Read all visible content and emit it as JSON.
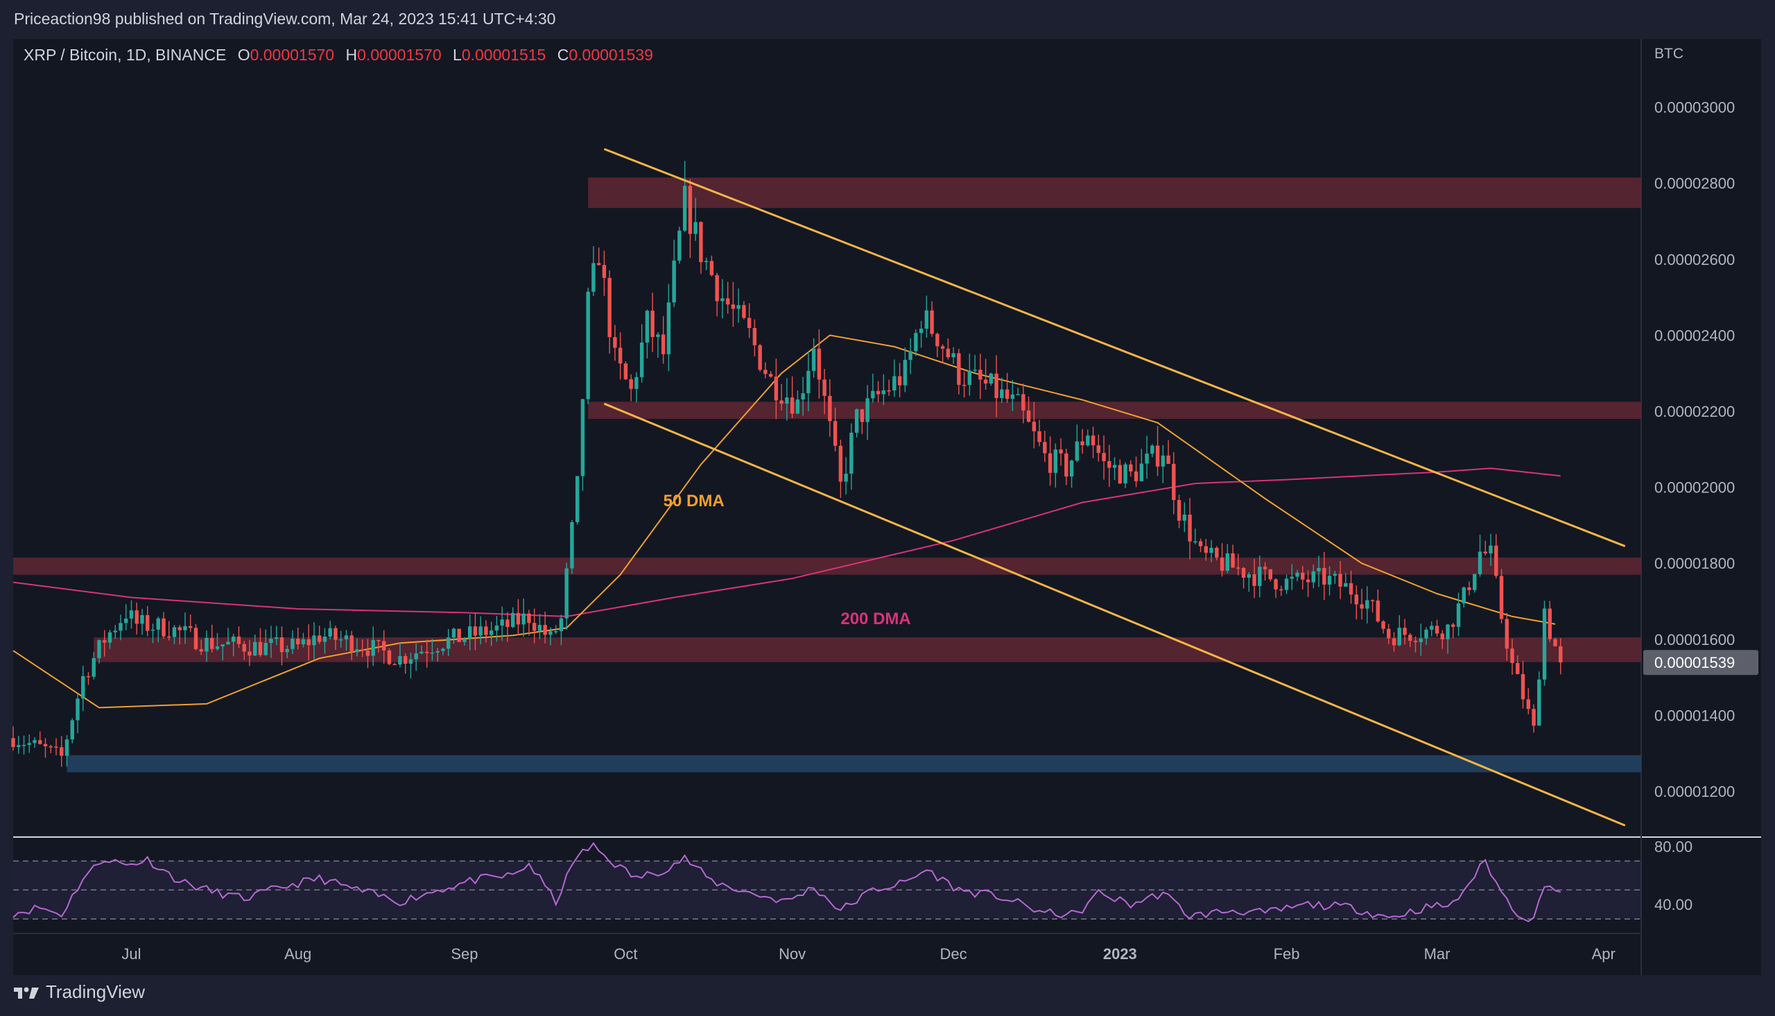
{
  "header": {
    "publisher": "Priceaction98 published on TradingView.com, Mar 24, 2023 15:41 UTC+4:30"
  },
  "legend": {
    "symbol": "XRP / Bitcoin, 1D, BINANCE",
    "open_label": "O",
    "open": "0.00001570",
    "high_label": "H",
    "high": "0.00001570",
    "low_label": "L",
    "low": "0.00001515",
    "close_label": "C",
    "close": "0.00001539"
  },
  "footer": {
    "logo_text": "TradingView"
  },
  "colors": {
    "background": "#131722",
    "page": "#1c2030",
    "up": "#26a69a",
    "down": "#ef5350",
    "channel": "#f5b547",
    "dma50": "#f0a030",
    "dma200": "#d9327a",
    "zone": "#6b2a35",
    "support": "#244466",
    "rsi": "#b36ad0",
    "grid_text": "#b2b5be"
  },
  "chart_data": [
    {
      "type": "candlestick",
      "title": "XRP / Bitcoin, 1D, BINANCE",
      "y_unit": "BTC",
      "ylim": [
        1.085e-05,
        3.18e-05
      ],
      "x_range": [
        "2022-06-09",
        "2023-04-08"
      ],
      "y_ticks": [
        "0.00001200",
        "0.00001400",
        "0.00001600",
        "0.00001800",
        "0.00002000",
        "0.00002200",
        "0.00002400",
        "0.00002600",
        "0.00002800",
        "0.00003000"
      ],
      "x_ticks": [
        {
          "date": "2022-07-01",
          "label": "Jul",
          "bold": false
        },
        {
          "date": "2022-08-01",
          "label": "Aug",
          "bold": false
        },
        {
          "date": "2022-09-01",
          "label": "Sep",
          "bold": false
        },
        {
          "date": "2022-10-01",
          "label": "Oct",
          "bold": false
        },
        {
          "date": "2022-11-01",
          "label": "Nov",
          "bold": false
        },
        {
          "date": "2022-12-01",
          "label": "Dec",
          "bold": false
        },
        {
          "date": "2023-01-01",
          "label": "2023",
          "bold": true
        },
        {
          "date": "2023-02-01",
          "label": "Feb",
          "bold": false
        },
        {
          "date": "2023-03-01",
          "label": "Mar",
          "bold": false
        },
        {
          "date": "2023-04-01",
          "label": "Apr",
          "bold": false
        }
      ],
      "last_price_label": "0.00001539",
      "last_price": 1.539e-05,
      "closes": [
        {
          "date": "2022-06-09",
          "close": 1.34e-05
        },
        {
          "date": "2022-06-15",
          "close": 1.31e-05
        },
        {
          "date": "2022-06-18",
          "close": 1.29e-05
        },
        {
          "date": "2022-06-22",
          "close": 1.5e-05
        },
        {
          "date": "2022-06-26",
          "close": 1.6e-05
        },
        {
          "date": "2022-06-30",
          "close": 1.67e-05
        },
        {
          "date": "2022-07-02",
          "close": 1.64e-05
        },
        {
          "date": "2022-07-08",
          "close": 1.63e-05
        },
        {
          "date": "2022-07-15",
          "close": 1.59e-05
        },
        {
          "date": "2022-07-25",
          "close": 1.58e-05
        },
        {
          "date": "2022-08-01",
          "close": 1.58e-05
        },
        {
          "date": "2022-08-05",
          "close": 1.61e-05
        },
        {
          "date": "2022-08-12",
          "close": 1.59e-05
        },
        {
          "date": "2022-08-20",
          "close": 1.55e-05
        },
        {
          "date": "2022-08-27",
          "close": 1.59e-05
        },
        {
          "date": "2022-09-02",
          "close": 1.61e-05
        },
        {
          "date": "2022-09-08",
          "close": 1.63e-05
        },
        {
          "date": "2022-09-13",
          "close": 1.66e-05
        },
        {
          "date": "2022-09-17",
          "close": 1.6e-05
        },
        {
          "date": "2022-09-19",
          "close": 1.65e-05
        },
        {
          "date": "2022-09-22",
          "close": 2e-05
        },
        {
          "date": "2022-09-24",
          "close": 2.48e-05
        },
        {
          "date": "2022-09-26",
          "close": 2.62e-05
        },
        {
          "date": "2022-09-29",
          "close": 2.33e-05
        },
        {
          "date": "2022-10-02",
          "close": 2.25e-05
        },
        {
          "date": "2022-10-05",
          "close": 2.43e-05
        },
        {
          "date": "2022-10-08",
          "close": 2.35e-05
        },
        {
          "date": "2022-10-10",
          "close": 2.56e-05
        },
        {
          "date": "2022-10-12",
          "close": 2.75e-05
        },
        {
          "date": "2022-10-15",
          "close": 2.62e-05
        },
        {
          "date": "2022-10-19",
          "close": 2.5e-05
        },
        {
          "date": "2022-10-24",
          "close": 2.4e-05
        },
        {
          "date": "2022-10-28",
          "close": 2.28e-05
        },
        {
          "date": "2022-11-02",
          "close": 2.22e-05
        },
        {
          "date": "2022-11-05",
          "close": 2.38e-05
        },
        {
          "date": "2022-11-08",
          "close": 2.15e-05
        },
        {
          "date": "2022-11-10",
          "close": 2e-05
        },
        {
          "date": "2022-11-13",
          "close": 2.18e-05
        },
        {
          "date": "2022-11-17",
          "close": 2.24e-05
        },
        {
          "date": "2022-11-22",
          "close": 2.3e-05
        },
        {
          "date": "2022-11-25",
          "close": 2.45e-05
        },
        {
          "date": "2022-11-28",
          "close": 2.4e-05
        },
        {
          "date": "2022-12-02",
          "close": 2.3e-05
        },
        {
          "date": "2022-12-08",
          "close": 2.26e-05
        },
        {
          "date": "2022-12-13",
          "close": 2.21e-05
        },
        {
          "date": "2022-12-18",
          "close": 2.08e-05
        },
        {
          "date": "2022-12-22",
          "close": 2.05e-05
        },
        {
          "date": "2022-12-26",
          "close": 2.15e-05
        },
        {
          "date": "2022-12-29",
          "close": 2.06e-05
        },
        {
          "date": "2023-01-03",
          "close": 2.03e-05
        },
        {
          "date": "2023-01-09",
          "close": 2.1e-05
        },
        {
          "date": "2023-01-12",
          "close": 1.94e-05
        },
        {
          "date": "2023-01-16",
          "close": 1.82e-05
        },
        {
          "date": "2023-01-22",
          "close": 1.79e-05
        },
        {
          "date": "2023-01-26",
          "close": 1.77e-05
        },
        {
          "date": "2023-02-01",
          "close": 1.75e-05
        },
        {
          "date": "2023-02-08",
          "close": 1.76e-05
        },
        {
          "date": "2023-02-13",
          "close": 1.73e-05
        },
        {
          "date": "2023-02-16",
          "close": 1.7e-05
        },
        {
          "date": "2023-02-20",
          "close": 1.61e-05
        },
        {
          "date": "2023-02-26",
          "close": 1.62e-05
        },
        {
          "date": "2023-03-03",
          "close": 1.63e-05
        },
        {
          "date": "2023-03-06",
          "close": 1.71e-05
        },
        {
          "date": "2023-03-09",
          "close": 1.83e-05
        },
        {
          "date": "2023-03-11",
          "close": 1.82e-05
        },
        {
          "date": "2023-03-13",
          "close": 1.66e-05
        },
        {
          "date": "2023-03-15",
          "close": 1.53e-05
        },
        {
          "date": "2023-03-17",
          "close": 1.45e-05
        },
        {
          "date": "2023-03-19",
          "close": 1.36e-05
        },
        {
          "date": "2023-03-21",
          "close": 1.68e-05
        },
        {
          "date": "2023-03-22",
          "close": 1.62e-05
        },
        {
          "date": "2023-03-24",
          "close": 1.54e-05
        }
      ],
      "annotations": [
        {
          "text": "50 DMA",
          "date": "2022-10-08",
          "price": 1.95e-05,
          "color": "#f0a030"
        },
        {
          "text": "200 DMA",
          "date": "2022-11-10",
          "price": 1.64e-05,
          "color": "#d9327a"
        }
      ],
      "zones": [
        {
          "from": 2.735e-05,
          "to": 2.815e-05,
          "start": "2022-09-24",
          "kind": "resistance"
        },
        {
          "from": 2.18e-05,
          "to": 2.225e-05,
          "start": "2022-09-24",
          "kind": "resistance"
        },
        {
          "from": 1.77e-05,
          "to": 1.815e-05,
          "start": "2022-06-09",
          "kind": "resistance"
        },
        {
          "from": 1.54e-05,
          "to": 1.605e-05,
          "start": "2022-06-24",
          "kind": "resistance"
        },
        {
          "from": 1.25e-05,
          "to": 1.295e-05,
          "start": "2022-06-19",
          "kind": "support"
        }
      ],
      "channel_lines": [
        {
          "start": {
            "date": "2022-09-27",
            "price": 2.89e-05
          },
          "end": {
            "date": "2023-04-05",
            "price": 1.845e-05
          }
        },
        {
          "start": {
            "date": "2022-09-27",
            "price": 2.22e-05
          },
          "end": {
            "date": "2023-04-05",
            "price": 1.11e-05
          }
        }
      ],
      "dma50": [
        {
          "date": "2022-06-09",
          "price": 1.57e-05
        },
        {
          "date": "2022-06-25",
          "price": 1.42e-05
        },
        {
          "date": "2022-07-15",
          "price": 1.43e-05
        },
        {
          "date": "2022-08-05",
          "price": 1.55e-05
        },
        {
          "date": "2022-08-20",
          "price": 1.59e-05
        },
        {
          "date": "2022-09-10",
          "price": 1.61e-05
        },
        {
          "date": "2022-09-20",
          "price": 1.63e-05
        },
        {
          "date": "2022-09-30",
          "price": 1.77e-05
        },
        {
          "date": "2022-10-15",
          "price": 2.06e-05
        },
        {
          "date": "2022-10-30",
          "price": 2.3e-05
        },
        {
          "date": "2022-11-08",
          "price": 2.4e-05
        },
        {
          "date": "2022-11-20",
          "price": 2.37e-05
        },
        {
          "date": "2022-12-05",
          "price": 2.3e-05
        },
        {
          "date": "2022-12-25",
          "price": 2.23e-05
        },
        {
          "date": "2023-01-08",
          "price": 2.17e-05
        },
        {
          "date": "2023-01-28",
          "price": 1.97e-05
        },
        {
          "date": "2023-02-15",
          "price": 1.8e-05
        },
        {
          "date": "2023-03-01",
          "price": 1.72e-05
        },
        {
          "date": "2023-03-15",
          "price": 1.66e-05
        },
        {
          "date": "2023-03-23",
          "price": 1.64e-05
        }
      ],
      "dma200": [
        {
          "date": "2022-06-09",
          "price": 1.75e-05
        },
        {
          "date": "2022-07-01",
          "price": 1.71e-05
        },
        {
          "date": "2022-08-01",
          "price": 1.68e-05
        },
        {
          "date": "2022-09-01",
          "price": 1.67e-05
        },
        {
          "date": "2022-09-20",
          "price": 1.66e-05
        },
        {
          "date": "2022-10-10",
          "price": 1.71e-05
        },
        {
          "date": "2022-11-01",
          "price": 1.76e-05
        },
        {
          "date": "2022-12-01",
          "price": 1.86e-05
        },
        {
          "date": "2022-12-25",
          "price": 1.96e-05
        },
        {
          "date": "2023-01-15",
          "price": 2.01e-05
        },
        {
          "date": "2023-02-01",
          "price": 2.02e-05
        },
        {
          "date": "2023-03-01",
          "price": 2.04e-05
        },
        {
          "date": "2023-03-11",
          "price": 2.05e-05
        },
        {
          "date": "2023-03-24",
          "price": 2.03e-05
        }
      ]
    },
    {
      "type": "line",
      "title": "",
      "ylim": [
        20,
        86
      ],
      "y_ticks": [
        "40.00",
        "80.00"
      ],
      "bands": [
        30,
        50,
        70
      ],
      "series": [
        {
          "name": "",
          "points": [
            {
              "date": "2022-06-09",
              "value": 34
            },
            {
              "date": "2022-06-14",
              "value": 38
            },
            {
              "date": "2022-06-18",
              "value": 33
            },
            {
              "date": "2022-06-22",
              "value": 58
            },
            {
              "date": "2022-06-26",
              "value": 72
            },
            {
              "date": "2022-06-30",
              "value": 67
            },
            {
              "date": "2022-07-04",
              "value": 71
            },
            {
              "date": "2022-07-10",
              "value": 56
            },
            {
              "date": "2022-07-16",
              "value": 49
            },
            {
              "date": "2022-07-22",
              "value": 44
            },
            {
              "date": "2022-07-29",
              "value": 52
            },
            {
              "date": "2022-08-05",
              "value": 58
            },
            {
              "date": "2022-08-12",
              "value": 50
            },
            {
              "date": "2022-08-20",
              "value": 42
            },
            {
              "date": "2022-08-27",
              "value": 50
            },
            {
              "date": "2022-09-03",
              "value": 57
            },
            {
              "date": "2022-09-10",
              "value": 60
            },
            {
              "date": "2022-09-13",
              "value": 68
            },
            {
              "date": "2022-09-18",
              "value": 42
            },
            {
              "date": "2022-09-22",
              "value": 74
            },
            {
              "date": "2022-09-25",
              "value": 80
            },
            {
              "date": "2022-09-29",
              "value": 68
            },
            {
              "date": "2022-10-03",
              "value": 58
            },
            {
              "date": "2022-10-08",
              "value": 64
            },
            {
              "date": "2022-10-12",
              "value": 72
            },
            {
              "date": "2022-10-17",
              "value": 56
            },
            {
              "date": "2022-10-24",
              "value": 48
            },
            {
              "date": "2022-10-31",
              "value": 42
            },
            {
              "date": "2022-11-05",
              "value": 52
            },
            {
              "date": "2022-11-10",
              "value": 36
            },
            {
              "date": "2022-11-16",
              "value": 50
            },
            {
              "date": "2022-11-22",
              "value": 55
            },
            {
              "date": "2022-11-26",
              "value": 64
            },
            {
              "date": "2022-12-02",
              "value": 50
            },
            {
              "date": "2022-12-10",
              "value": 45
            },
            {
              "date": "2022-12-18",
              "value": 34
            },
            {
              "date": "2022-12-24",
              "value": 33
            },
            {
              "date": "2022-12-28",
              "value": 48
            },
            {
              "date": "2023-01-03",
              "value": 40
            },
            {
              "date": "2023-01-09",
              "value": 48
            },
            {
              "date": "2023-01-14",
              "value": 32
            },
            {
              "date": "2023-01-22",
              "value": 36
            },
            {
              "date": "2023-01-28",
              "value": 34
            },
            {
              "date": "2023-02-05",
              "value": 40
            },
            {
              "date": "2023-02-13",
              "value": 38
            },
            {
              "date": "2023-02-20",
              "value": 31
            },
            {
              "date": "2023-02-27",
              "value": 38
            },
            {
              "date": "2023-03-04",
              "value": 40
            },
            {
              "date": "2023-03-07",
              "value": 55
            },
            {
              "date": "2023-03-10",
              "value": 70
            },
            {
              "date": "2023-03-13",
              "value": 48
            },
            {
              "date": "2023-03-16",
              "value": 34
            },
            {
              "date": "2023-03-19",
              "value": 29
            },
            {
              "date": "2023-03-21",
              "value": 55
            },
            {
              "date": "2023-03-24",
              "value": 48
            }
          ]
        }
      ]
    }
  ]
}
